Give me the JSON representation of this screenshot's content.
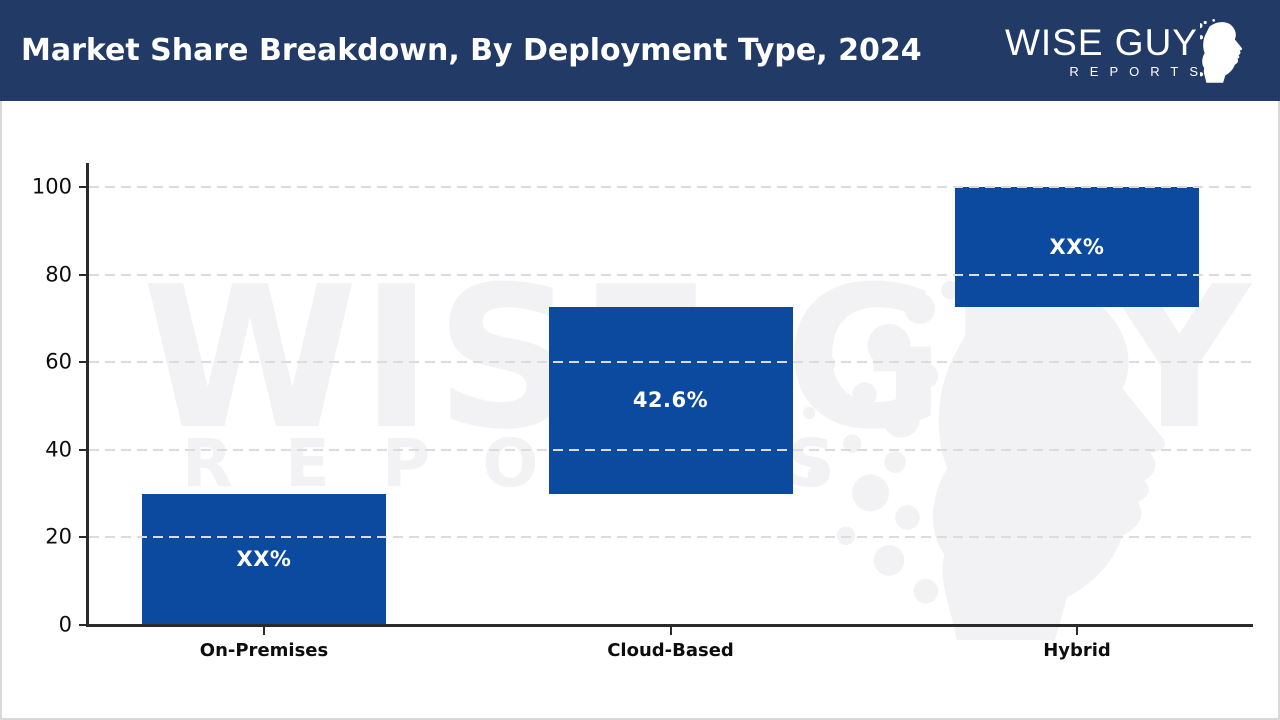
{
  "header": {
    "title": "Market Share Breakdown, By Deployment Type, 2024",
    "logo": {
      "line1": "WISE GUY",
      "line2": "REPORTS",
      "face_icon": "dot-face-profile"
    }
  },
  "watermark": {
    "line1": "WISE GUY",
    "line2": "REPORTS",
    "face_icon": "dot-face-profile"
  },
  "colors": {
    "header_bg": "#213a66",
    "bar": "#0b4a9f",
    "axis": "#2a2a2a",
    "grid": "#dcdcdc",
    "watermark": "#f2f2f4",
    "bar_label_text": "#ffffff",
    "tick_text": "#0d0d0d"
  },
  "chart_data": {
    "type": "bar",
    "subtype": "floating-waterfall",
    "title": "Market Share Breakdown, By Deployment Type, 2024",
    "categories": [
      "On-Premises",
      "Cloud-Based",
      "Hybrid"
    ],
    "bars": [
      {
        "category": "On-Premises",
        "start": 0,
        "end": 30,
        "value_label": "XX%"
      },
      {
        "category": "Cloud-Based",
        "start": 30,
        "end": 72.6,
        "value_label": "42.6%"
      },
      {
        "category": "Hybrid",
        "start": 72.6,
        "end": 100,
        "value_label": "XX%"
      }
    ],
    "xlabel": "",
    "ylabel": "",
    "ylim": [
      0,
      105
    ],
    "yticks": [
      0,
      20,
      40,
      60,
      80,
      100
    ],
    "grid": "horizontal-dashed",
    "gridlines_over_bars": true,
    "legend": "none"
  }
}
